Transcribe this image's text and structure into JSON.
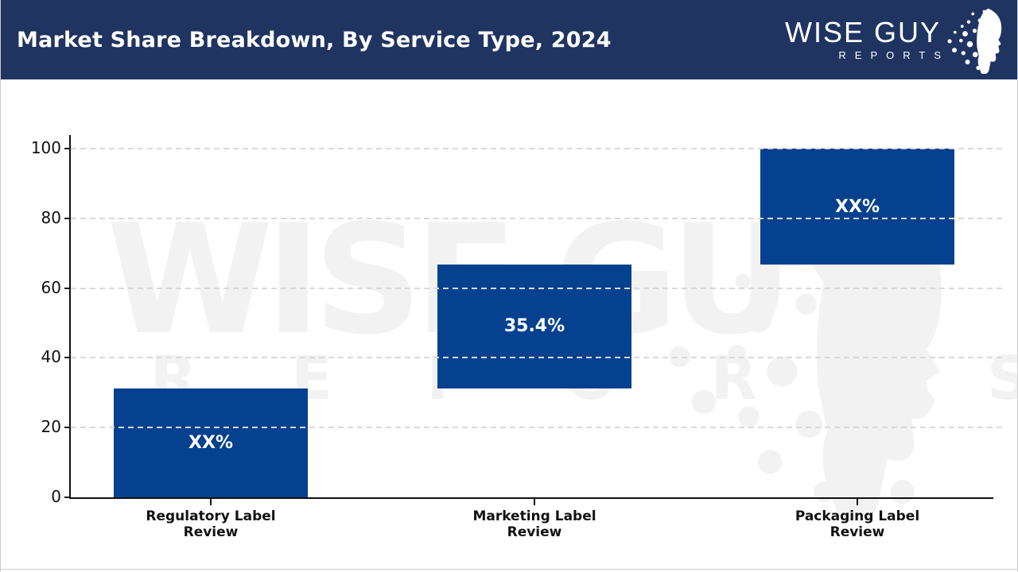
{
  "header": {
    "title": "Market Share Breakdown, By Service Type, 2024",
    "logo": {
      "wordmark": "WISE GUY",
      "sub": "REPORTS"
    },
    "bg_color": "#1f3461"
  },
  "watermark": {
    "line1": "WISE GUY",
    "line2": "R E P O R T S"
  },
  "chart_data": {
    "type": "bar",
    "subtype": "floating-stacked-percentage",
    "title": "Market Share Breakdown, By Service Type, 2024",
    "categories": [
      "Regulatory Label\nReview",
      "Marketing Label\nReview",
      "Packaging Label\nReview"
    ],
    "segments": [
      {
        "category": "Regulatory Label Review",
        "start": 0,
        "end": 31.3,
        "label": "XX%"
      },
      {
        "category": "Marketing Label Review",
        "start": 31.3,
        "end": 66.7,
        "label": "35.4%"
      },
      {
        "category": "Packaging Label Review",
        "start": 66.7,
        "end": 100,
        "label": "XX%"
      }
    ],
    "ylim": [
      0,
      100
    ],
    "yticks": [
      0,
      20,
      40,
      60,
      80,
      100
    ],
    "bar_color": "#05418f",
    "bar_label_color": "#ffffff",
    "grid": {
      "axis": "y",
      "style": "dashed",
      "color": "#d9d9d9"
    },
    "axis_color": "#111111",
    "legend": "none"
  }
}
